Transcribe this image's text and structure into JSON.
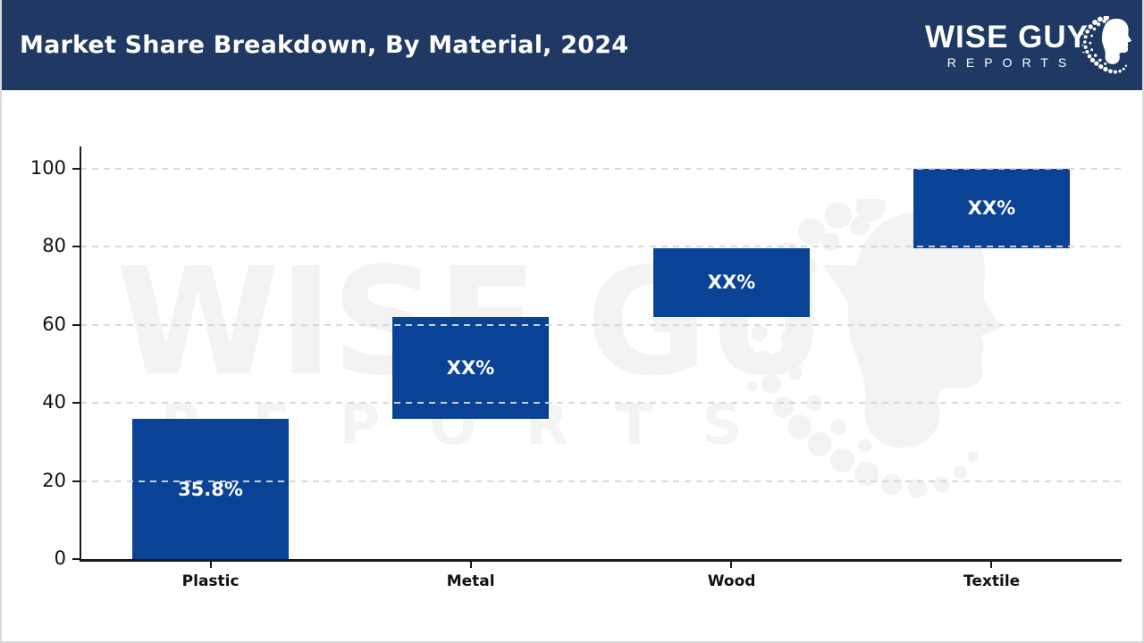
{
  "header": {
    "title": "Market Share Breakdown, By Material, 2024",
    "logo": {
      "line1": "WISE GUY",
      "line2": "REPORTS"
    }
  },
  "watermark": {
    "line1": "WISE GUY",
    "line2": "REPORTS"
  },
  "chart_data": {
    "type": "bar",
    "subtype": "waterfall",
    "title": "Market Share Breakdown, By Material, 2024",
    "categories": [
      "Plastic",
      "Metal",
      "Wood",
      "Textile"
    ],
    "series": [
      {
        "name": "Market share (%)",
        "segments": [
          {
            "category": "Plastic",
            "start": 0,
            "end": 35.8,
            "label": "35.8%"
          },
          {
            "category": "Metal",
            "start": 35.8,
            "end": 62,
            "label": "XX%"
          },
          {
            "category": "Wood",
            "start": 62,
            "end": 79.5,
            "label": "XX%"
          },
          {
            "category": "Textile",
            "start": 79.5,
            "end": 100,
            "label": "XX%"
          }
        ]
      }
    ],
    "xlabel": "",
    "ylabel": "",
    "ylim": [
      0,
      100
    ],
    "yticks": [
      0,
      20,
      40,
      60,
      80,
      100
    ],
    "grid": "horizontal-dashed",
    "legend": "none",
    "bar_color": "#0a4296",
    "bar_label_color": "#ffffff"
  },
  "colors": {
    "header_bg": "#1f3864",
    "bar": "#0a4296",
    "grid": "#d7d7d7",
    "axis": "#1a1a1a",
    "watermark": "#f3f3f3",
    "page_border": "#d9d9d9"
  }
}
